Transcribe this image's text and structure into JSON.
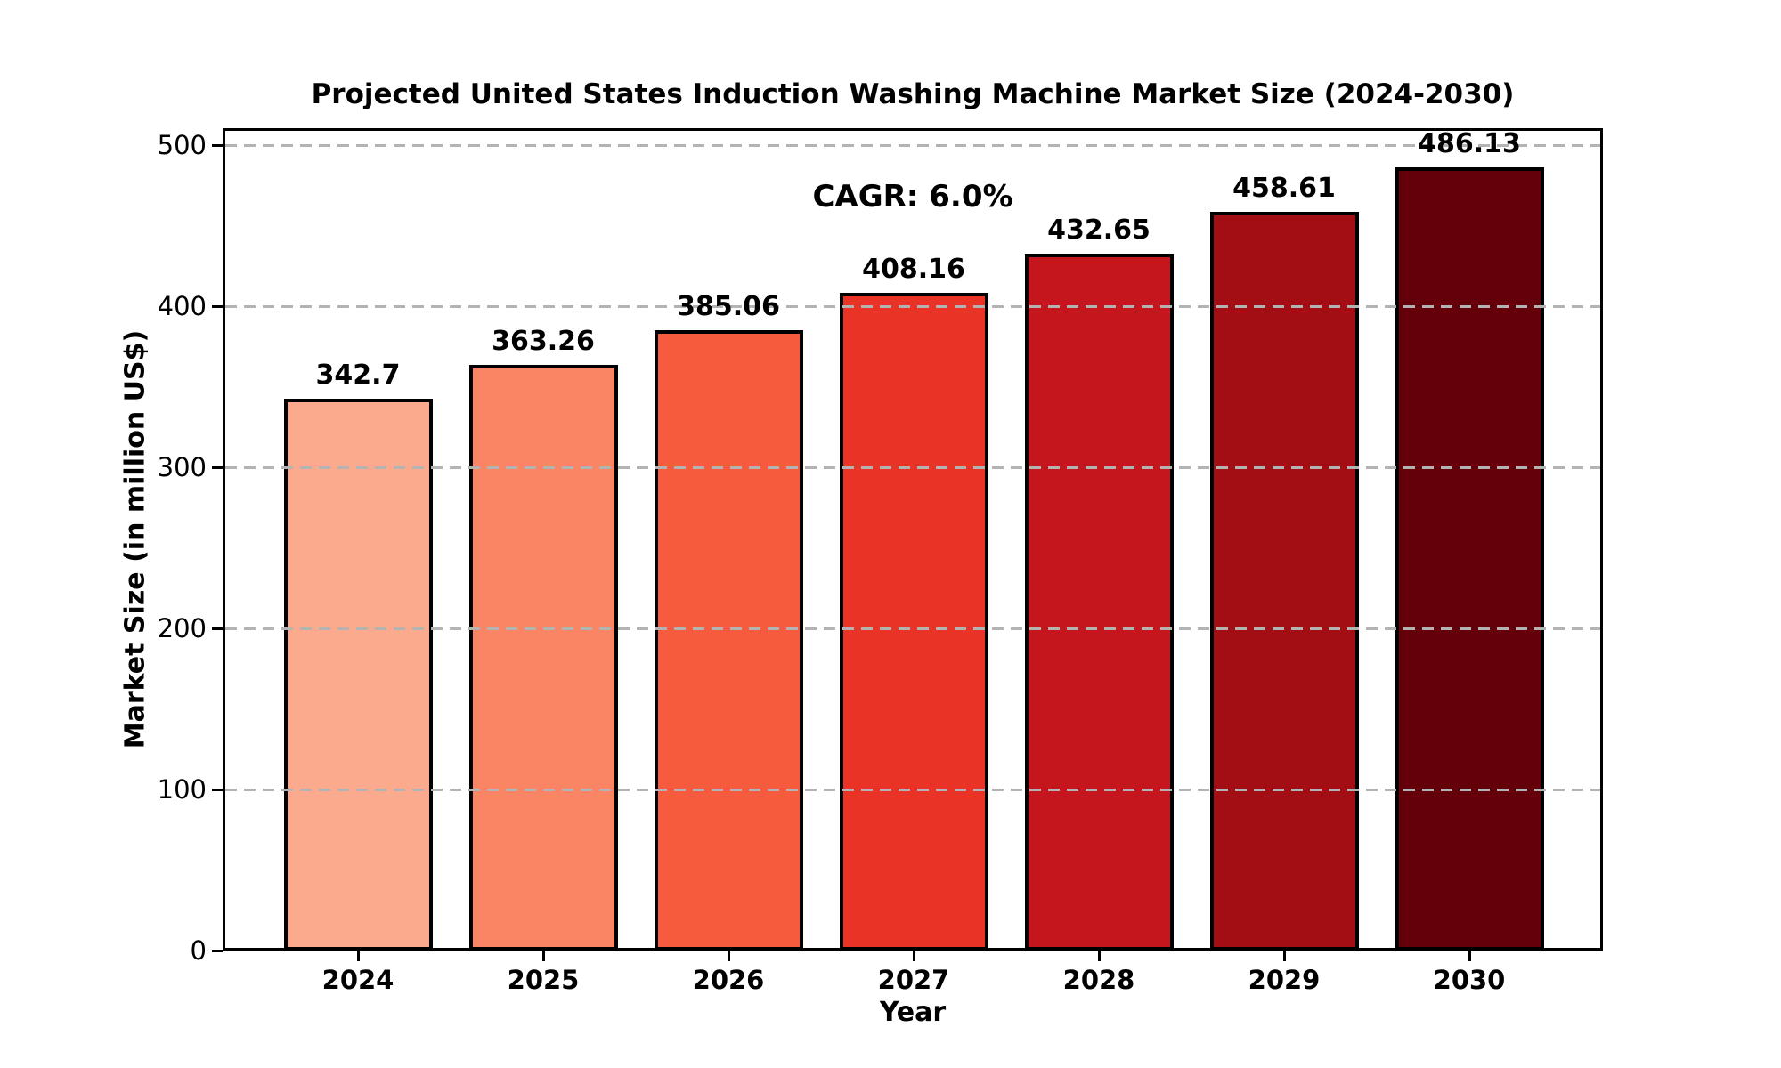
{
  "chart_data": {
    "type": "bar",
    "title": "Projected United States Induction Washing Machine Market Size (2024-2030)",
    "annotation": "CAGR: 6.0%",
    "xlabel": "Year",
    "ylabel": "Market Size (in million US$)",
    "categories": [
      "2024",
      "2025",
      "2026",
      "2027",
      "2028",
      "2029",
      "2030"
    ],
    "values": [
      342.7,
      363.26,
      385.06,
      408.16,
      432.65,
      458.61,
      486.13
    ],
    "value_labels": [
      "342.7",
      "363.26",
      "385.06",
      "408.16",
      "432.65",
      "458.61",
      "486.13"
    ],
    "bar_colors": [
      "#fbaa8d",
      "#fa8565",
      "#f75b3d",
      "#ea3327",
      "#c5161d",
      "#a30e14",
      "#640009"
    ],
    "bar_edge_color": "#000000",
    "yticks": [
      0,
      100,
      200,
      300,
      400,
      500
    ],
    "ylim": [
      0,
      510
    ],
    "grid": {
      "axis": "y",
      "style": "dashed",
      "color": "#b3b3b3",
      "on": true
    },
    "legend_position": "none",
    "background_color": "#ffffff",
    "text_color": "#000000"
  }
}
